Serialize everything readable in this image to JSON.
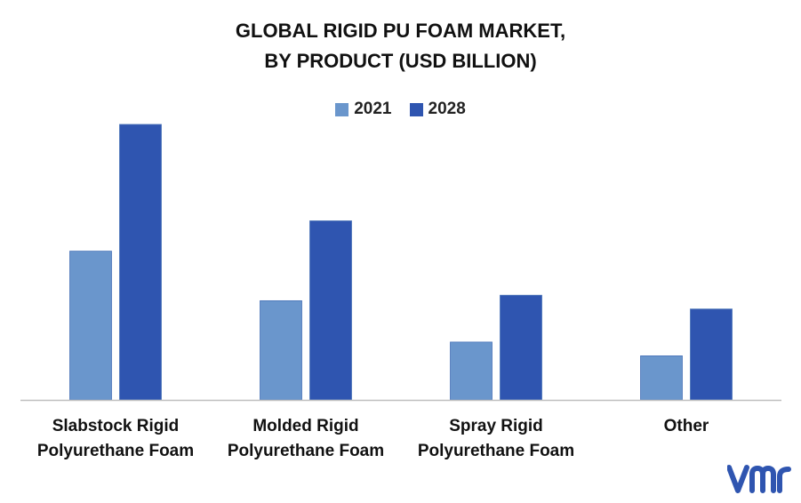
{
  "chart_data": {
    "type": "bar",
    "title_lines": [
      "GLOBAL RIGID PU FOAM MARKET,",
      "BY PRODUCT (USD BILLION)"
    ],
    "categories": [
      [
        "Slabstock Rigid",
        "Polyurethane Foam"
      ],
      [
        "Molded Rigid",
        "Polyurethane Foam"
      ],
      [
        "Spray Rigid",
        "Polyurethane Foam"
      ],
      [
        "Other"
      ]
    ],
    "series": [
      {
        "name": "2021",
        "color": "#6a96cc",
        "values": [
          5.4,
          3.6,
          2.1,
          1.6
        ]
      },
      {
        "name": "2028",
        "color": "#2f55b0",
        "values": [
          10.0,
          6.5,
          3.8,
          3.3
        ]
      }
    ],
    "ylim": [
      0,
      10
    ],
    "grid": false,
    "legend_position": "top-center",
    "axis_color": "#bfbfbf"
  },
  "logo": {
    "icon": "vmr-logo-icon",
    "color": "#2f55b0"
  }
}
